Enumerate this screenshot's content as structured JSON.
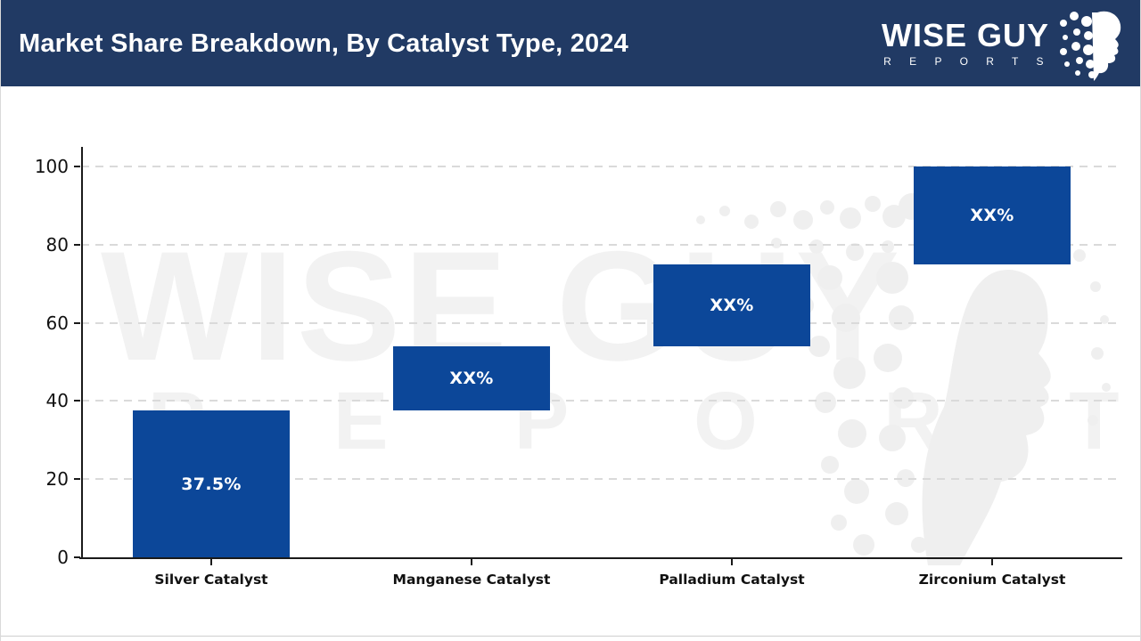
{
  "header": {
    "title": "Market Share Breakdown, By Catalyst Type, 2024",
    "brand": {
      "line1": "WISE GUY",
      "line2": "R E P O R T S"
    },
    "bg_color": "#213a64"
  },
  "watermark": {
    "line1": "WISE GUY",
    "line2": "R E P O R T S"
  },
  "chart_data": {
    "type": "bar",
    "subtype": "waterfall",
    "title": "Market Share Breakdown, By Catalyst Type, 2024",
    "categories": [
      "Silver Catalyst",
      "Manganese Catalyst",
      "Palladium Catalyst",
      "Zirconium Catalyst"
    ],
    "segments": [
      {
        "category": "Silver Catalyst",
        "start": 0,
        "end": 37.5,
        "label": "37.5%"
      },
      {
        "category": "Manganese Catalyst",
        "start": 37.5,
        "end": 54,
        "label": "XX%"
      },
      {
        "category": "Palladium Catalyst",
        "start": 54,
        "end": 75,
        "label": "XX%"
      },
      {
        "category": "Zirconium Catalyst",
        "start": 75,
        "end": 100,
        "label": "XX%"
      }
    ],
    "bar_labels": [
      "37.5%",
      "XX%",
      "XX%",
      "XX%"
    ],
    "yticks": [
      0,
      20,
      40,
      60,
      80,
      100
    ],
    "ylim": [
      0,
      105
    ],
    "xlabel": "",
    "ylabel": "",
    "legend": "none",
    "grid": "horizontal-dashed",
    "bar_color": "#0c4799",
    "grid_color": "#dadada",
    "axis_color": "#1a1a1a"
  }
}
